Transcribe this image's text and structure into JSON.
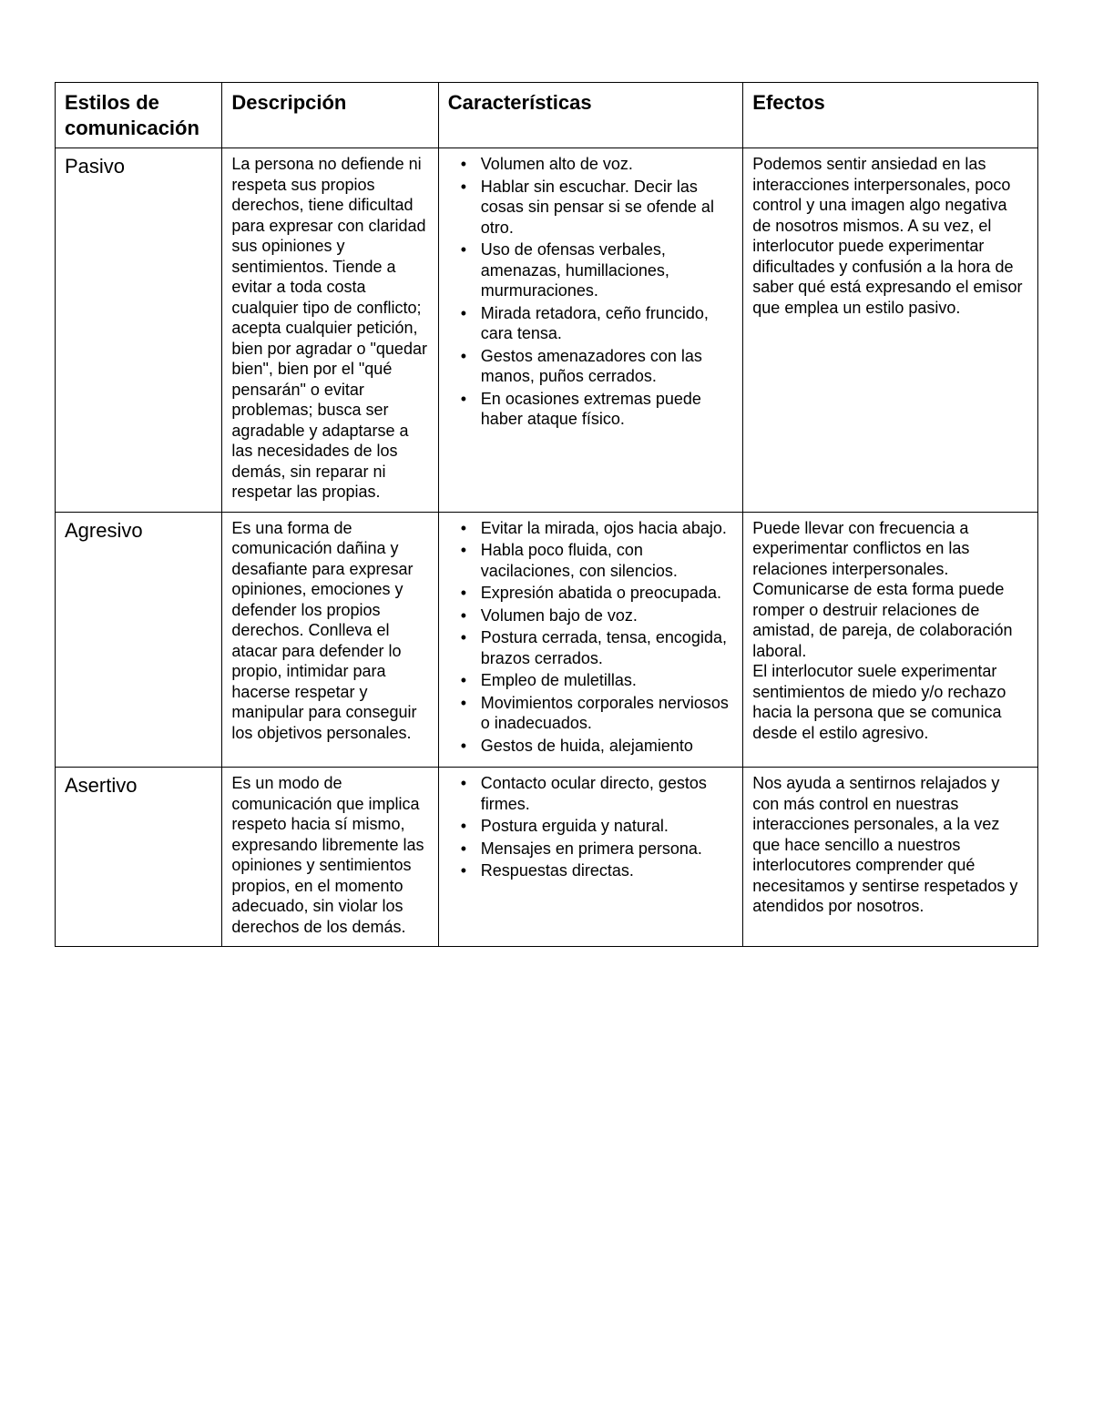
{
  "table": {
    "columns": [
      "Estilos de comunicación",
      "Descripción",
      "Características",
      "Efectos"
    ],
    "rows": [
      {
        "style": "Pasivo",
        "description": "La persona no defiende ni respeta sus propios derechos, tiene dificultad para expresar con claridad sus opiniones y sentimientos. Tiende a evitar a toda costa cualquier tipo de conflicto; acepta cualquier petición, bien por agradar o \"quedar bien\", bien por el \"qué pensarán\" o evitar problemas; busca ser agradable y adaptarse a las necesidades de los demás, sin reparar ni respetar las propias.",
        "characteristics": [
          "Volumen alto de voz.",
          "Hablar sin escuchar. Decir las cosas sin pensar si se ofende al otro.",
          "Uso de ofensas verbales, amenazas, humillaciones, murmuraciones.",
          "Mirada retadora, ceño fruncido, cara tensa.",
          "Gestos amenazadores con las manos, puños cerrados.",
          "En ocasiones extremas puede haber ataque físico."
        ],
        "effects": "Podemos sentir ansiedad en las interacciones interpersonales, poco control y una imagen algo negativa de nosotros mismos. A su vez, el interlocutor puede experimentar dificultades y confusión a la hora de saber qué está expresando el emisor que emplea un estilo pasivo."
      },
      {
        "style": "Agresivo",
        "description": "Es una forma de comunicación dañina y desafiante para expresar opiniones, emociones y defender los propios derechos. Conlleva el atacar para defender lo propio, intimidar para hacerse respetar y manipular para conseguir los objetivos personales.",
        "characteristics": [
          "Evitar la mirada, ojos hacia abajo.",
          "Habla poco fluida, con vacilaciones, con silencios.",
          "Expresión abatida o preocupada.",
          "Volumen bajo de voz.",
          "Postura cerrada, tensa, encogida, brazos cerrados.",
          "Empleo de muletillas.",
          "Movimientos corporales nerviosos o inadecuados.",
          "Gestos de huida, alejamiento"
        ],
        "effects": "Puede llevar con frecuencia a experimentar conflictos en las relaciones interpersonales. Comunicarse de esta forma puede romper o destruir relaciones de amistad, de pareja, de colaboración laboral.\nEl interlocutor suele experimentar sentimientos de miedo y/o rechazo hacia la persona que se comunica desde el estilo agresivo."
      },
      {
        "style": "Asertivo",
        "description": "Es un modo de comunicación que implica respeto hacia sí mismo, expresando libremente las opiniones y sentimientos propios, en el momento adecuado, sin violar los derechos de los demás.",
        "characteristics": [
          "Contacto ocular directo, gestos firmes.",
          "Postura erguida y natural.",
          "Mensajes en primera persona.",
          "Respuestas directas."
        ],
        "effects": "Nos ayuda a sentirnos relajados y con más control en nuestras interacciones personales, a la vez que hace sencillo a nuestros interlocutores comprender qué necesitamos y sentirse respetados y atendidos por nosotros."
      }
    ],
    "styling": {
      "border_color": "#000000",
      "background_color": "#ffffff",
      "header_font_size_pt": 16,
      "body_font_size_pt": 13,
      "style_name_font_size_pt": 16,
      "font_family": "Arial",
      "column_widths_pct": [
        17,
        22,
        31,
        30
      ]
    }
  }
}
